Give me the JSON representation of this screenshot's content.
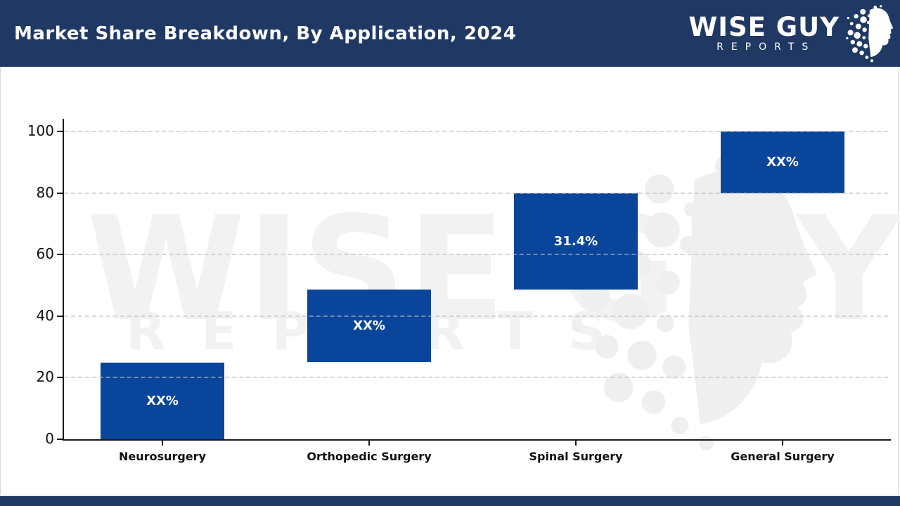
{
  "header": {
    "title": "Market Share Breakdown, By Application, 2024",
    "logo": {
      "line1": "WISE GUY",
      "line2": "REPORTS"
    }
  },
  "watermark": {
    "line1": "WISE GUY",
    "line2": "REPORTS"
  },
  "footer": {},
  "chart_data": {
    "type": "bar",
    "subtype": "waterfall",
    "title": "Market Share Breakdown, By Application, 2024",
    "categories": [
      "Neurosurgery",
      "Orthopedic Surgery",
      "Spinal Surgery",
      "General Surgery"
    ],
    "segments": [
      {
        "category": "Neurosurgery",
        "start": 0,
        "end": 25,
        "label": "XX%"
      },
      {
        "category": "Orthopedic Surgery",
        "start": 25,
        "end": 48.6,
        "label": "XX%"
      },
      {
        "category": "Spinal Surgery",
        "start": 48.6,
        "end": 80,
        "label": "31.4%"
      },
      {
        "category": "General Surgery",
        "start": 80,
        "end": 100,
        "label": "XX%"
      }
    ],
    "yticks": [
      0,
      20,
      40,
      60,
      80,
      100
    ],
    "ylim": [
      0,
      104
    ],
    "xlabel": "",
    "ylabel": "",
    "grid": "horizontal-dashed-over-bars",
    "legend": "none",
    "bar_color": "#09459b",
    "bar_label_color": "#ffffff",
    "axis_color": "#1a1a1a",
    "grid_color": "#d9d9d9",
    "header_bg": "#203864",
    "watermark_color": "#f2f2f2"
  }
}
